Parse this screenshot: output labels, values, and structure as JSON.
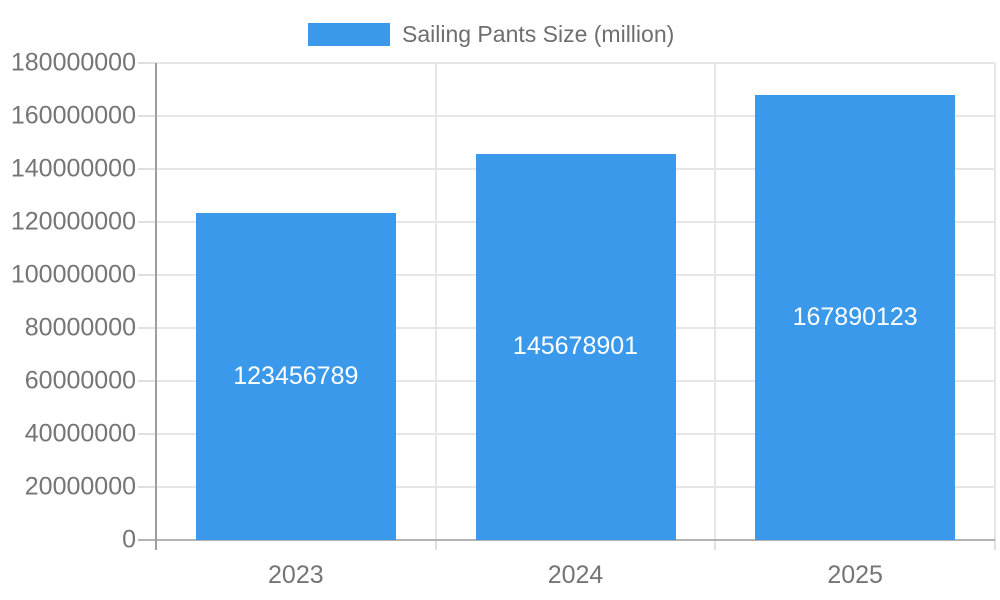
{
  "chart_data": {
    "type": "bar",
    "title": "Sailing Pants Size (million)",
    "legend": {
      "position": "top-center",
      "entries": [
        "Sailing Pants Size (million)"
      ]
    },
    "categories": [
      "2023",
      "2024",
      "2025"
    ],
    "series": [
      {
        "name": "Sailing Pants Size (million)",
        "values": [
          123456789,
          145678901,
          167890123
        ]
      }
    ],
    "bar_value_labels": [
      "123456789",
      "145678901",
      "167890123"
    ],
    "xlabel": "",
    "ylabel": "",
    "ylim": [
      0,
      180000000
    ],
    "ytick_step": 20000000,
    "ytick_labels": [
      "0",
      "20000000",
      "40000000",
      "60000000",
      "80000000",
      "100000000",
      "120000000",
      "140000000",
      "160000000",
      "180000000"
    ],
    "grid": true,
    "colors": {
      "bar": "#3b99ec",
      "gridline": "#e6e6e6",
      "baseline": "#b3b3b3",
      "axis_line": "#9e9e9e",
      "tick": "#e0e0e0",
      "axis_text": "#757575",
      "legend_text": "#6e6e6e",
      "bar_label_text": "#ffffff",
      "background": "#ffffff"
    }
  }
}
